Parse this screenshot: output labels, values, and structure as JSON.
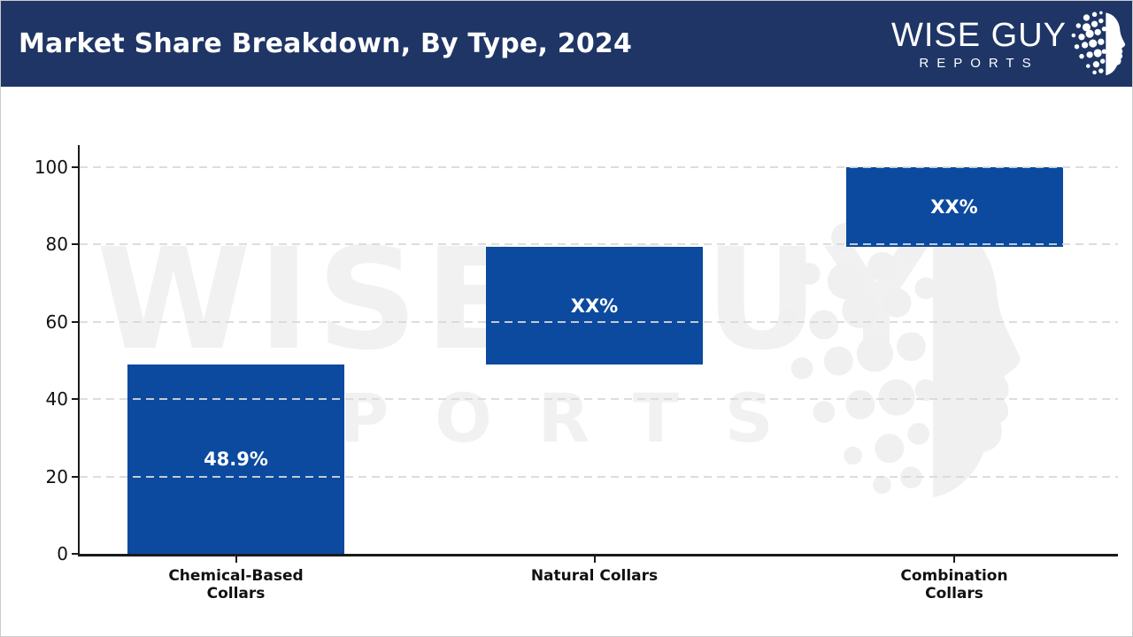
{
  "header": {
    "title": "Market Share Breakdown, By Type, 2024",
    "logo": {
      "name": "WISE GUY",
      "subtitle": "REPORTS"
    }
  },
  "watermark": {
    "line1": "WISE GUY",
    "line2": "REPORTS"
  },
  "chart_data": {
    "type": "bar",
    "subtype": "waterfall",
    "title": "Market Share Breakdown, By Type, 2024",
    "categories": [
      "Chemical-Based Collars",
      "Natural Collars",
      "Combination Collars"
    ],
    "segments": [
      {
        "category": "Chemical-Based Collars",
        "start": 0,
        "end": 48.9,
        "label": "48.9%"
      },
      {
        "category": "Natural Collars",
        "start": 48.9,
        "end": 79.4,
        "label": "XX%"
      },
      {
        "category": "Combination Collars",
        "start": 79.4,
        "end": 100,
        "label": "XX%"
      }
    ],
    "yticks": [
      0,
      20,
      40,
      60,
      80,
      100
    ],
    "ylim": [
      0,
      100
    ],
    "xlabel": "",
    "ylabel": "",
    "grid": "horizontal-dashed",
    "legend": "none",
    "bar_color": "#0b4a9e",
    "bar_label_color": "#ffffff",
    "axis_color": "#1a1a1a",
    "gridline_color": "#d9d9d9",
    "header_color": "#1e3566"
  }
}
